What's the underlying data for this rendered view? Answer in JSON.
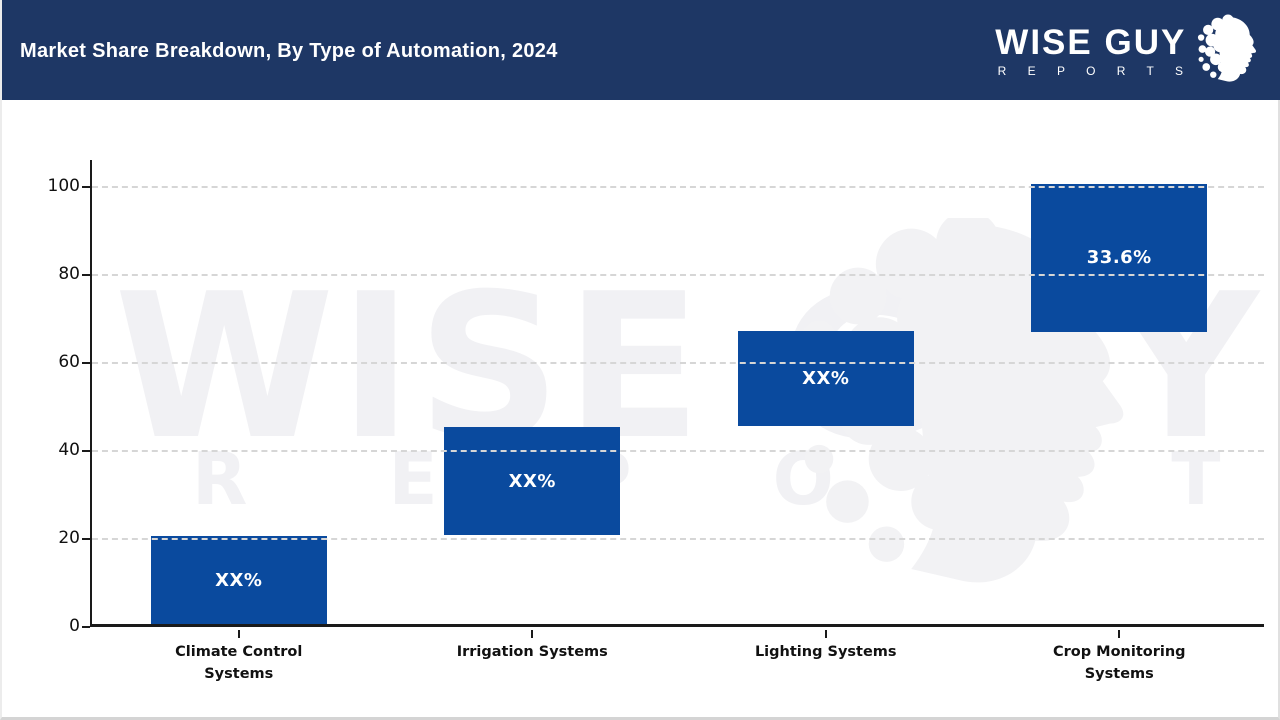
{
  "header": {
    "title": "Market Share Breakdown, By Type of Automation, 2024",
    "bg_color": "#1e3765",
    "text_color": "#ffffff",
    "logo": {
      "wordmark": "WISE GUY",
      "subtext": "R E P O R T S"
    }
  },
  "watermark": {
    "line1": "WISE GUY",
    "line2": "R E P O R T S"
  },
  "chart_data": {
    "type": "bar",
    "subtype": "floating-waterfall",
    "title": "Market Share Breakdown, By Type of Automation, 2024",
    "categories": [
      "Climate Control Systems",
      "Irrigation Systems",
      "Lighting Systems",
      "Crop Monitoring Systems"
    ],
    "segments": [
      {
        "category": "Climate Control Systems",
        "label_lines": [
          "Climate Control",
          "Systems"
        ],
        "start": 0,
        "end": 20,
        "value_label": "XX%"
      },
      {
        "category": "Irrigation Systems",
        "label_lines": [
          "Irrigation Systems"
        ],
        "start": 20.2,
        "end": 44.7,
        "value_label": "XX%"
      },
      {
        "category": "Lighting Systems",
        "label_lines": [
          "Lighting Systems"
        ],
        "start": 44.9,
        "end": 66.6,
        "value_label": "XX%"
      },
      {
        "category": "Crop Monitoring Systems",
        "label_lines": [
          "Crop Monitoring",
          "Systems"
        ],
        "start": 66.4,
        "end": 100,
        "value_label": "33.6%",
        "value": 33.6
      }
    ],
    "y_ticks": [
      0,
      20,
      40,
      60,
      80,
      100
    ],
    "ylim": [
      0,
      106
    ],
    "xlabel": "",
    "ylabel": "",
    "bar_color": "#0a4a9e",
    "bar_label_color": "#ffffff",
    "grid": "horizontal-dashed",
    "grid_color": "#d6d6d6",
    "axis_color": "#1a1a1a",
    "legend": "none"
  }
}
